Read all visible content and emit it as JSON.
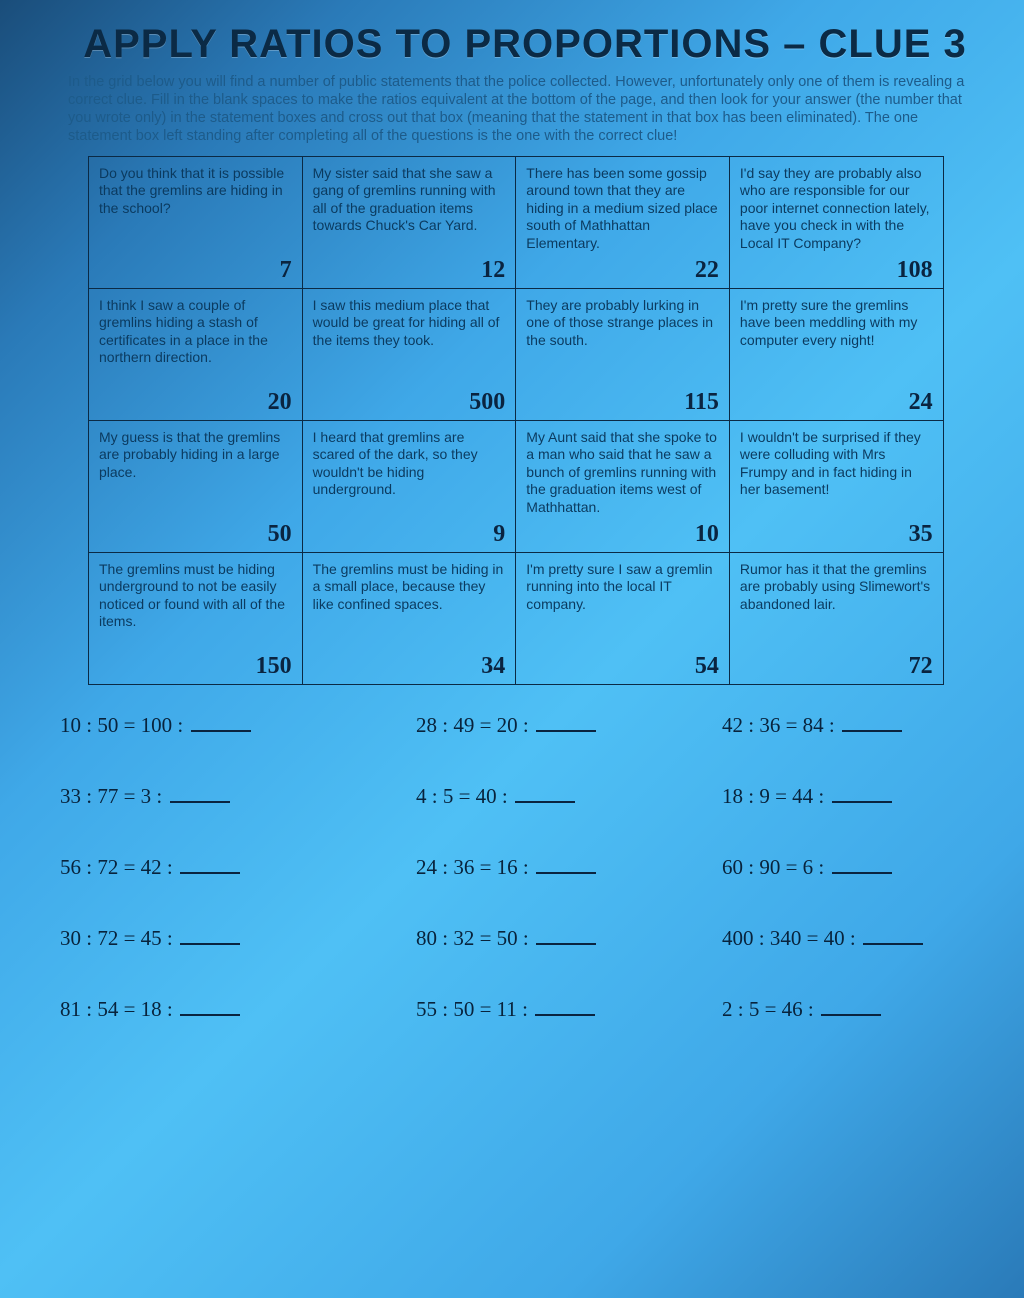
{
  "title": "APPLY RATIOS TO PROPORTIONS – CLUE 3",
  "intro": "In the grid below you will find a number of public statements that the police collected. However, unfortunately only one of them is revealing a correct clue. Fill in the blank spaces to make the ratios equivalent at the bottom of the page, and then look for your answer (the number that you wrote only) in the statement boxes and cross out that box (meaning that the statement in that box has been eliminated). The one statement box left standing after completing all of the questions is the one with the correct clue!",
  "grid": [
    [
      {
        "text": "Do you think that it is possible that the gremlins are hiding in the school?",
        "num": "7"
      },
      {
        "text": "My sister said that she saw a gang of gremlins running with all of the graduation items towards Chuck's Car Yard.",
        "num": "12"
      },
      {
        "text": "There has been some gossip around town that they are hiding in a medium sized place south of Mathhattan Elementary.",
        "num": "22"
      },
      {
        "text": "I'd say they are probably also who are responsible for our poor internet connection lately, have you check in with the Local IT Company?",
        "num": "108"
      }
    ],
    [
      {
        "text": "I think I saw a couple of gremlins hiding a stash of certificates in a place in the northern direction.",
        "num": "20"
      },
      {
        "text": "I saw this medium place that would be great for hiding all of the items they took.",
        "num": "500"
      },
      {
        "text": "They are probably lurking in one of those strange places in the south.",
        "num": "115"
      },
      {
        "text": "I'm pretty sure the gremlins have been meddling with my computer every night!",
        "num": "24"
      }
    ],
    [
      {
        "text": "My guess is that the gremlins are probably hiding in a large place.",
        "num": "50"
      },
      {
        "text": "I heard that gremlins are scared of the dark, so they wouldn't be hiding underground.",
        "num": "9"
      },
      {
        "text": "My Aunt said that she spoke to a man who said that he saw a bunch of gremlins running with the graduation items west of Mathhattan.",
        "num": "10"
      },
      {
        "text": "I wouldn't be surprised if they were colluding with Mrs Frumpy and in fact hiding in her basement!",
        "num": "35"
      }
    ],
    [
      {
        "text": "The gremlins must be hiding underground to not be easily noticed or found with all of the items.",
        "num": "150"
      },
      {
        "text": "The gremlins must be hiding in a small place, because they like confined spaces.",
        "num": "34"
      },
      {
        "text": "I'm pretty sure I saw a gremlin running into the local IT company.",
        "num": "54"
      },
      {
        "text": "Rumor has it that the gremlins are probably using Slimewort's abandoned lair.",
        "num": "72"
      }
    ]
  ],
  "problems": [
    [
      {
        "expr": "10 : 50 = 100 :"
      },
      {
        "expr": "28 : 49 = 20 :"
      },
      {
        "expr": "42 : 36 = 84 :"
      }
    ],
    [
      {
        "expr": "33 : 77 = 3 :"
      },
      {
        "expr": "4 : 5 = 40 :"
      },
      {
        "expr": "18 : 9 = 44 :"
      }
    ],
    [
      {
        "expr": "56 : 72 = 42 :"
      },
      {
        "expr": "24 : 36 = 16 :"
      },
      {
        "expr": "60 : 90 = 6 :"
      }
    ],
    [
      {
        "expr": "30 : 72 = 45 :"
      },
      {
        "expr": "80 : 32 = 50 :"
      },
      {
        "expr": "400 : 340 = 40 :"
      }
    ],
    [
      {
        "expr": "81 : 54 = 18 :"
      },
      {
        "expr": "55 : 50 = 11 :"
      },
      {
        "expr": "2 : 5 = 46 :"
      }
    ]
  ]
}
